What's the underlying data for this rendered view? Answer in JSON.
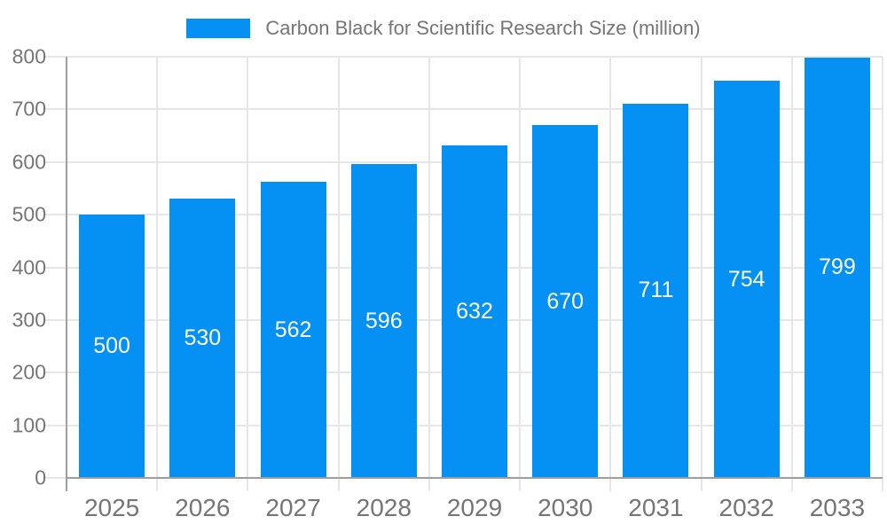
{
  "chart_data": {
    "type": "bar",
    "title": "Carbon Black for Scientific Research Size (million)",
    "categories": [
      "2025",
      "2026",
      "2027",
      "2028",
      "2029",
      "2030",
      "2031",
      "2032",
      "2033"
    ],
    "values": [
      500,
      530,
      562,
      596,
      632,
      670,
      711,
      754,
      799
    ],
    "xlabel": "",
    "ylabel": "",
    "ylim": [
      0,
      800
    ],
    "yticks": [
      0,
      100,
      200,
      300,
      400,
      500,
      600,
      700,
      800
    ],
    "grid": true,
    "legend_position": "top",
    "value_labels": "inside-center",
    "colors": {
      "bar": "#0590F4",
      "grid": "#E6E6E6",
      "axis": "#9E9E9E",
      "tick_text": "#757575",
      "title_text": "#757575",
      "value_label": "#FFFFFF",
      "background": "#FFFFFF"
    }
  }
}
